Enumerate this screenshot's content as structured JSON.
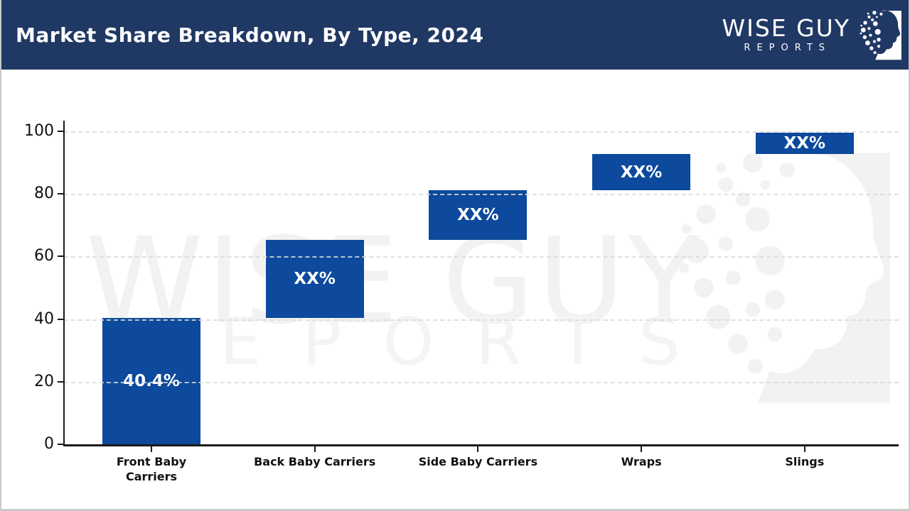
{
  "header": {
    "title": "Market Share Breakdown, By Type, 2024",
    "bg_color": "#203864",
    "logo": {
      "line1": "WISE GUY",
      "line2": "REPORTS"
    }
  },
  "watermark": {
    "line1": "WISE GUY",
    "line2": "REPORTS"
  },
  "chart_data": {
    "type": "bar",
    "subtype": "stacked-waterfall",
    "title": "Market Share Breakdown, By Type, 2024",
    "categories": [
      "Front Baby Carriers",
      "Back Baby Carriers",
      "Side Baby Carriers",
      "Wraps",
      "Slings"
    ],
    "category_lines": [
      [
        "Front Baby",
        "Carriers"
      ],
      [
        "Back Baby Carriers"
      ],
      [
        "Side Baby Carriers"
      ],
      [
        "Wraps"
      ],
      [
        "Slings"
      ]
    ],
    "segments": [
      {
        "category": "Front Baby Carriers",
        "label": "40.4%",
        "start": 0,
        "end": 40.4
      },
      {
        "category": "Back Baby Carriers",
        "label": "XX%",
        "start": 40.4,
        "end": 65.2
      },
      {
        "category": "Side Baby Carriers",
        "label": "XX%",
        "start": 65.2,
        "end": 81.1
      },
      {
        "category": "Wraps",
        "label": "XX%",
        "start": 81.1,
        "end": 92.8
      },
      {
        "category": "Slings",
        "label": "XX%",
        "start": 92.8,
        "end": 99.5
      }
    ],
    "yticks": [
      0,
      20,
      40,
      60,
      80,
      100
    ],
    "ylim": [
      0,
      103.5
    ],
    "xlabel": "",
    "ylabel": "",
    "grid": "horizontal-dashed",
    "legend": "none",
    "bar_color": "#0d499c",
    "bar_label_color": "#ffffff",
    "axis_color": "#1a1a1a",
    "grid_color": "#dadada",
    "header_color": "#203864",
    "watermark_color": "#f2f2f2"
  }
}
